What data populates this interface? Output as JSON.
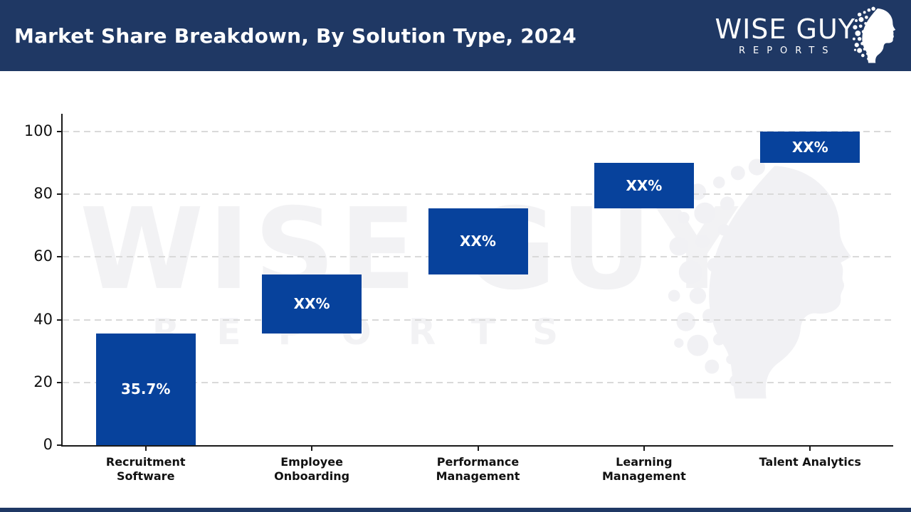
{
  "header": {
    "title": "Market Share Breakdown, By Solution Type, 2024",
    "logo": {
      "title": "WISE GUY",
      "subtitle": "REPORTS"
    }
  },
  "watermark": {
    "line1": "WISE GUY",
    "line2": "REPORTS"
  },
  "chart_data": {
    "type": "bar",
    "variant": "floating-waterfall",
    "title": "Market Share Breakdown, By Solution Type, 2024",
    "categories": [
      "Recruitment Software",
      "Employee Onboarding",
      "Performance Management",
      "Learning Management",
      "Talent Analytics"
    ],
    "category_label_lines": [
      [
        "Recruitment",
        "Software"
      ],
      [
        "Employee",
        "Onboarding"
      ],
      [
        "Performance",
        "Management"
      ],
      [
        "Learning",
        "Management"
      ],
      [
        "Talent Analytics"
      ]
    ],
    "segments": [
      {
        "category": "Recruitment Software",
        "start": 0,
        "end": 35.7,
        "label": "35.7%"
      },
      {
        "category": "Employee Onboarding",
        "start": 35.7,
        "end": 54.5,
        "label": "XX%"
      },
      {
        "category": "Performance Management",
        "start": 54.5,
        "end": 75.5,
        "label": "XX%"
      },
      {
        "category": "Learning Management",
        "start": 75.5,
        "end": 90.0,
        "label": "XX%"
      },
      {
        "category": "Talent Analytics",
        "start": 90.0,
        "end": 100.0,
        "label": "XX%"
      }
    ],
    "y_axis": {
      "ticks": [
        0,
        20,
        40,
        60,
        80,
        100
      ],
      "min": 0,
      "max": 105,
      "gridlines": true,
      "grid_style": "dashed"
    },
    "legend": null
  },
  "colors": {
    "header_bg": "#1f3864",
    "bar": "#07429c",
    "bar_label": "#ffffff",
    "grid": "#d9d9d9",
    "axis": "#1a1a1a",
    "watermark": "#f2f2f4"
  }
}
